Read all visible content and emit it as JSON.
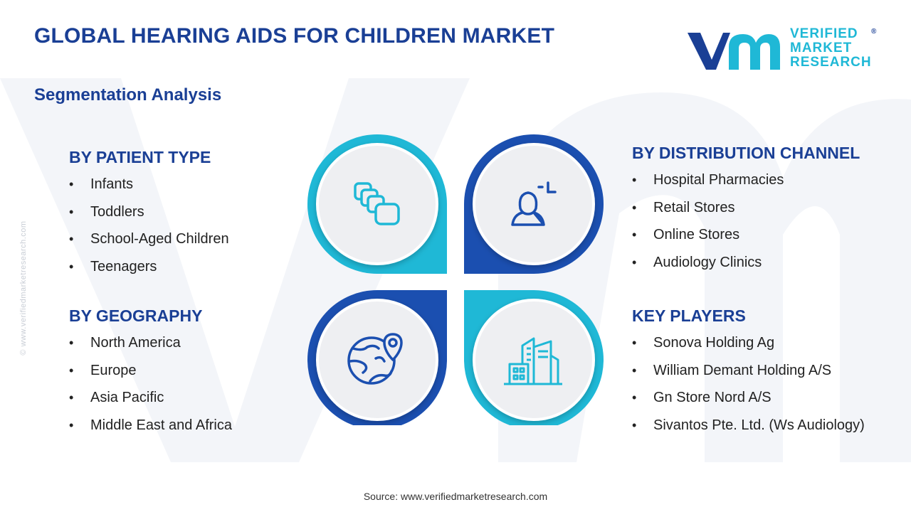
{
  "title": "GLOBAL HEARING AIDS FOR CHILDREN MARKET",
  "subtitle": "Segmentation Analysis",
  "logo": {
    "line1": "VERIFIED",
    "line2": "MARKET",
    "line3": "RESEARCH",
    "registered": "®"
  },
  "side_url": "© www.verifiedmarketresearch.com",
  "source": "Source: www.verifiedmarketresearch.com",
  "colors": {
    "navy": "#1a3f95",
    "cyan": "#1fb8d6",
    "blue": "#1b4fb0",
    "text": "#222222",
    "circle_fill": "#eeeff2",
    "watermark": "#f3f5f9"
  },
  "segments": {
    "patient_type": {
      "heading": "BY PATIENT TYPE",
      "items": [
        "Infants",
        "Toddlers",
        "School-Aged  Children",
        "Teenagers"
      ]
    },
    "geography": {
      "heading": "BY GEOGRAPHY",
      "items": [
        "North America",
        "Europe",
        "Asia Pacific",
        "Middle East and Africa"
      ]
    },
    "distribution_channel": {
      "heading": "BY DISTRIBUTION CHANNEL",
      "items": [
        "Hospital Pharmacies",
        "Retail Stores",
        "Online Stores",
        "Audiology Clinics"
      ]
    },
    "key_players": {
      "heading": "KEY PLAYERS",
      "items": [
        "Sonova Holding Ag",
        "William Demant Holding A/S",
        "Gn Store Nord A/S",
        "Sivantos Pte. Ltd. (Ws Audiology)"
      ]
    }
  },
  "icons": {
    "top_left": "stacked-layers-icon",
    "top_right": "person-target-icon",
    "bottom_left": "globe-location-icon",
    "bottom_right": "city-buildings-icon"
  }
}
